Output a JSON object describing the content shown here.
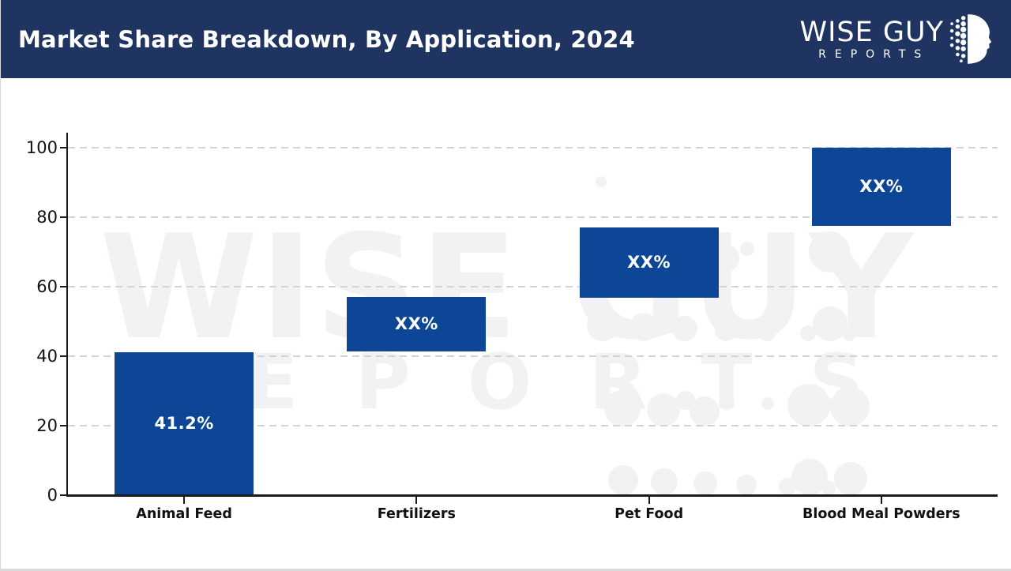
{
  "header": {
    "title": "Market Share Breakdown, By Application, 2024",
    "bg_color": "#203461",
    "logo": {
      "line1": "WISE GUY",
      "line2": "REPORTS"
    }
  },
  "watermark": {
    "line1": "WISE GUY",
    "line2": "REPORTS"
  },
  "chart_data": {
    "type": "bar",
    "subtype": "waterfall",
    "title": "Market Share Breakdown, By Application, 2024",
    "categories": [
      "Animal Feed",
      "Fertilizers",
      "Pet Food",
      "Blood Meal Powders"
    ],
    "segments": [
      {
        "category": "Animal Feed",
        "from": 0,
        "to": 41.2,
        "label": "41.2%"
      },
      {
        "category": "Fertilizers",
        "from": 41.4,
        "to": 57.0,
        "label": "XX%"
      },
      {
        "category": "Pet Food",
        "from": 56.8,
        "to": 77.0,
        "label": "XX%"
      },
      {
        "category": "Blood Meal Powders",
        "from": 77.3,
        "to": 100.0,
        "label": "XX%"
      }
    ],
    "xlabel": "",
    "ylabel": "",
    "ylim": [
      0,
      104
    ],
    "yticks": [
      0,
      20,
      40,
      60,
      80,
      100
    ],
    "grid": "dashed-horizontal",
    "legend": "none",
    "bar_color": "#0d4696",
    "bar_label_color": "#ffffff",
    "axis_color": "#1a1a1a",
    "grid_color": "#d4d4d4"
  }
}
